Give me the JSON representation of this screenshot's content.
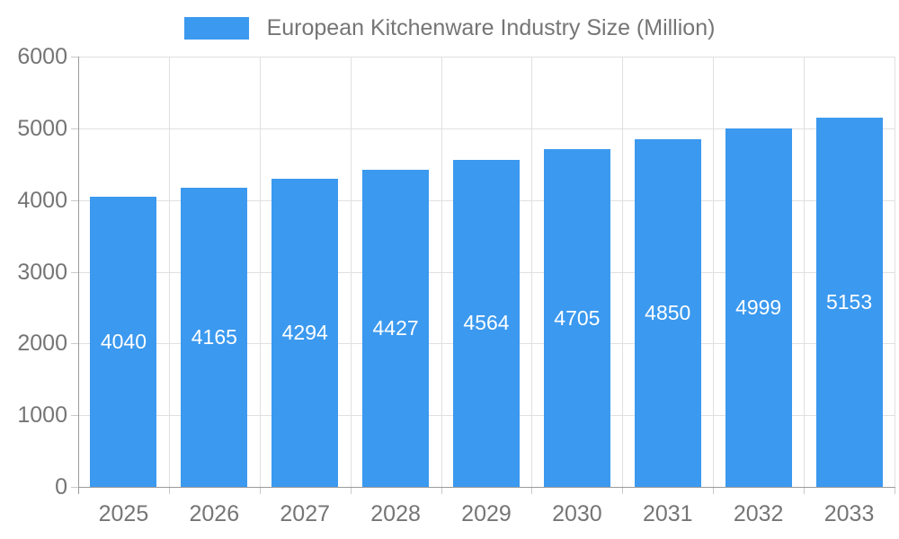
{
  "chart_data": {
    "type": "bar",
    "title": "European Kitchenware Industry Size (Million)",
    "legend": "European Kitchenware Industry Size (Million)",
    "legend_position": "top-center",
    "categories": [
      "2025",
      "2026",
      "2027",
      "2028",
      "2029",
      "2030",
      "2031",
      "2032",
      "2033"
    ],
    "series": [
      {
        "name": "European Kitchenware Industry Size (Million)",
        "values": [
          4040,
          4165,
          4294,
          4427,
          4564,
          4705,
          4850,
          4999,
          5153
        ]
      }
    ],
    "xlabel": "",
    "ylabel": "",
    "ylim": [
      0,
      6000
    ],
    "yticks": [
      0,
      1000,
      2000,
      3000,
      4000,
      5000,
      6000
    ],
    "grid": true,
    "value_labels": "inside-center",
    "colors": {
      "bar": "#3B99EF",
      "bar_value_text": "#ffffff",
      "axis_text": "#757575",
      "grid_line": "#E0E0E0",
      "axis_line": "#9B9B9B",
      "tick_line": "#C9C9C9",
      "background": "#ffffff"
    }
  }
}
